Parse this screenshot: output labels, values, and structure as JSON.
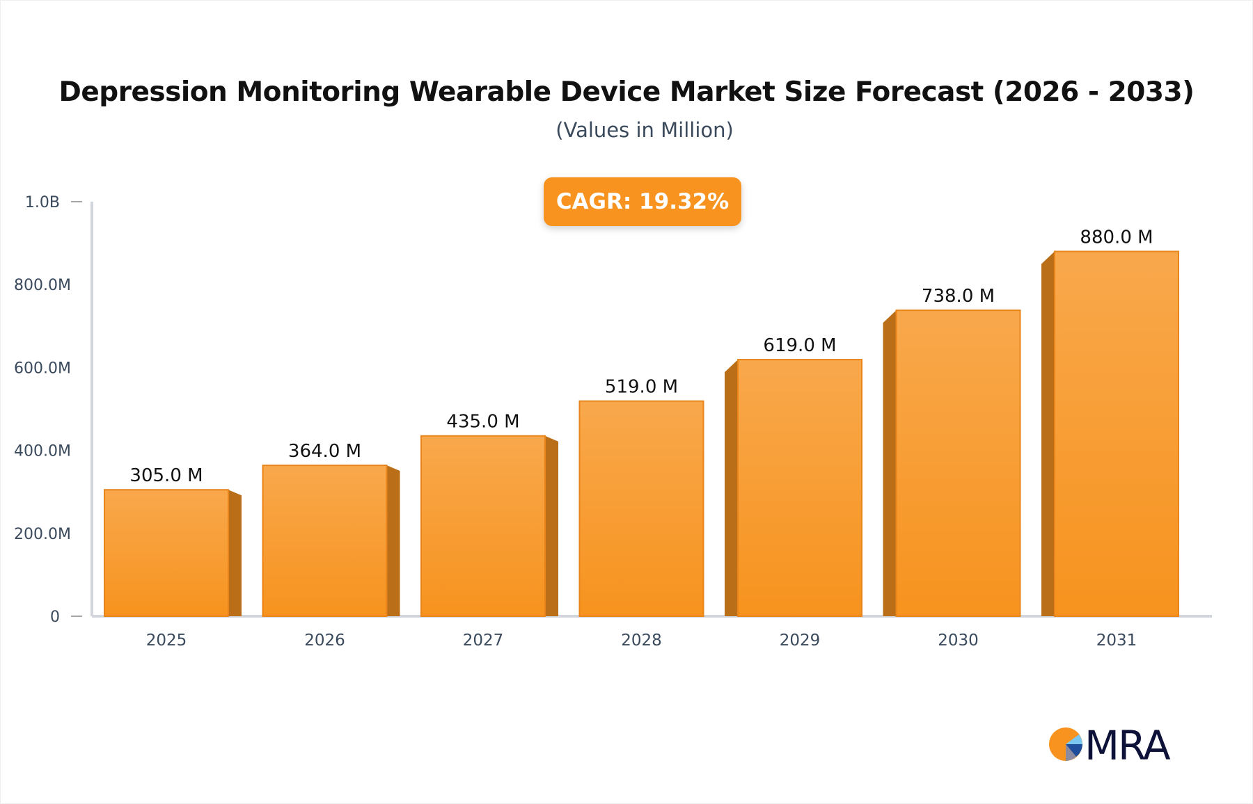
{
  "chart_data": {
    "type": "bar",
    "title": "Depression Monitoring Wearable Device Market Size Forecast (2026 - 2033)",
    "subtitle": "(Values in Million)",
    "categories": [
      "2025",
      "2026",
      "2027",
      "2028",
      "2029",
      "2030",
      "2031"
    ],
    "values": [
      305.0,
      364.0,
      435.0,
      519.0,
      619.0,
      738.0,
      880.0
    ],
    "data_labels": [
      "305.0 M",
      "364.0 M",
      "435.0 M",
      "519.0 M",
      "619.0 M",
      "738.0 M",
      "880.0 M"
    ],
    "yticks": [
      0,
      200,
      400,
      600,
      800,
      1000
    ],
    "ytick_labels": [
      "0",
      "200.0M",
      "400.0M",
      "600.0M",
      "800.0M",
      "1.0B"
    ],
    "ylim": [
      0,
      1000
    ],
    "xlabel": "",
    "ylabel": "",
    "grid": false,
    "bar_color": "#f7931e",
    "annotation": "CAGR: 19.32%"
  },
  "logo": {
    "text": "MRA"
  }
}
